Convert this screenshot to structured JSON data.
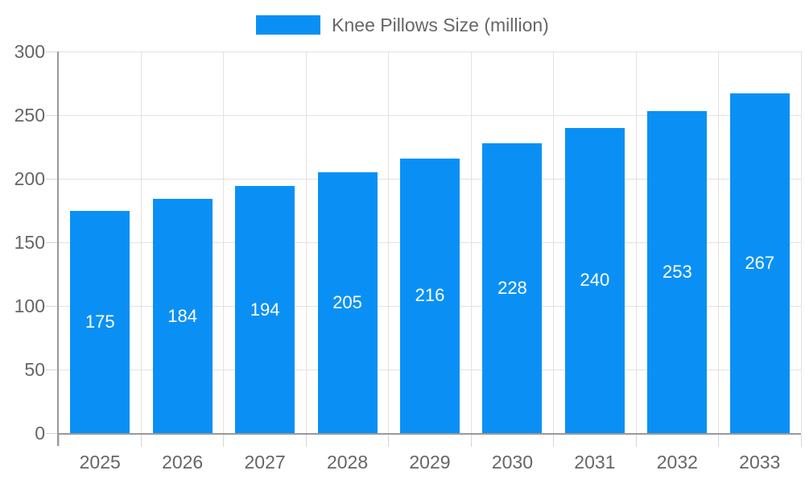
{
  "chart_data": {
    "type": "bar",
    "title": "Knee Pillows Size (million)",
    "categories": [
      "2025",
      "2026",
      "2027",
      "2028",
      "2029",
      "2030",
      "2031",
      "2032",
      "2033"
    ],
    "values": [
      175,
      184,
      194,
      205,
      216,
      228,
      240,
      253,
      267
    ],
    "xlabel": "",
    "ylabel": "",
    "ylim": [
      0,
      300
    ],
    "yticks": [
      0,
      50,
      100,
      150,
      200,
      250,
      300
    ],
    "grid": true,
    "legend_position": "top",
    "colors": {
      "bar": "#0a90f5",
      "value_label": "#ffffff",
      "axis_text": "#666666",
      "gridline": "#e2e2e2",
      "tick": "#d6d6d6",
      "axis_line": "#999999"
    }
  }
}
